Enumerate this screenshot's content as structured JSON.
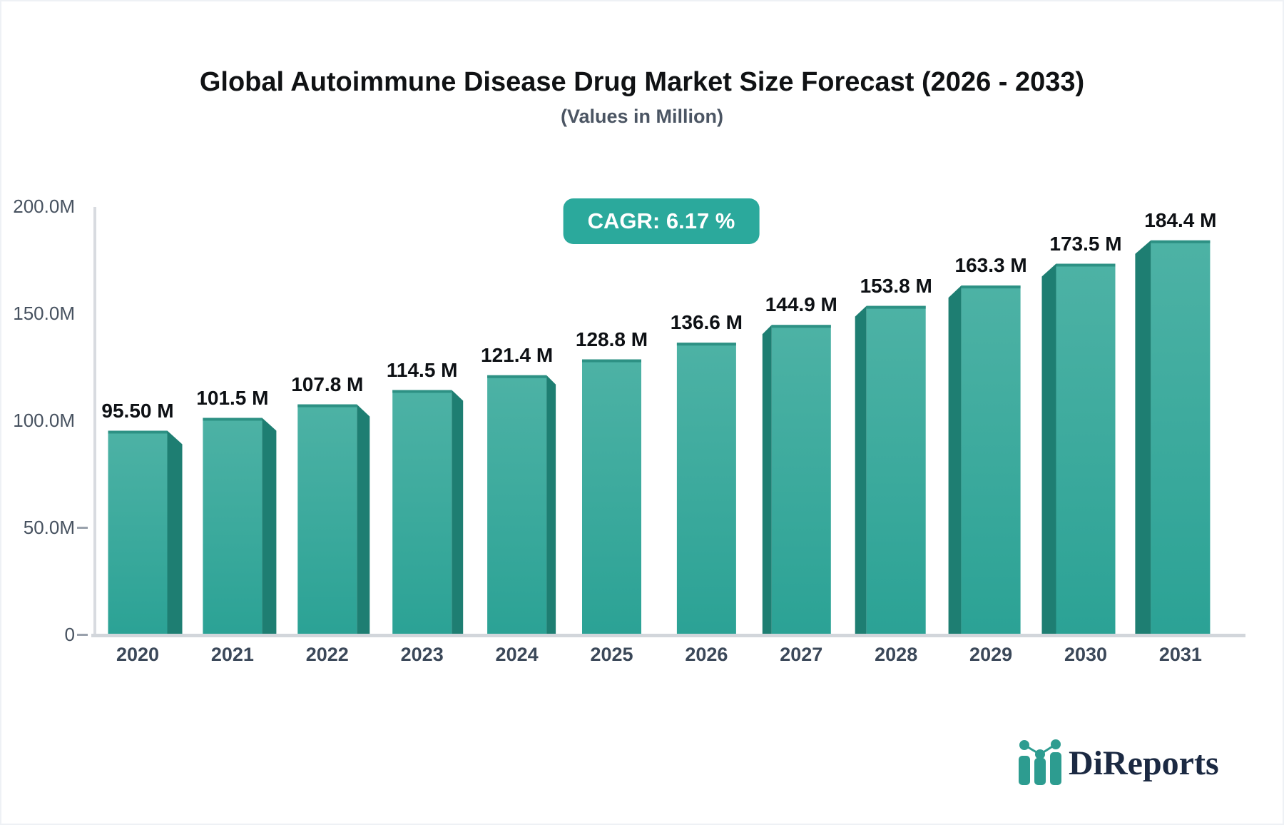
{
  "title": "Global Autoimmune Disease Drug Market Size Forecast (2026 - 2033)",
  "subtitle": "(Values in Million)",
  "badge": {
    "label": "CAGR: 6.17 %"
  },
  "logo": {
    "brand": "DiReports",
    "icon": "bar-chart-logo-icon"
  },
  "chart_data": {
    "type": "bar",
    "title": "Global Autoimmune Disease Drug Market Size Forecast (2026 - 2033)",
    "subtitle": "(Values in Million)",
    "xlabel": "",
    "ylabel": "",
    "categories": [
      "2020",
      "2021",
      "2022",
      "2023",
      "2024",
      "2025",
      "2026",
      "2027",
      "2028",
      "2029",
      "2030",
      "2031"
    ],
    "values": [
      95.5,
      101.5,
      107.8,
      114.5,
      121.4,
      128.8,
      136.6,
      144.9,
      153.8,
      163.3,
      173.5,
      184.4
    ],
    "bar_labels": [
      "95.50 M",
      "101.5 M",
      "107.8 M",
      "114.5 M",
      "121.4 M",
      "128.8 M",
      "136.6 M",
      "144.9 M",
      "153.8 M",
      "163.3 M",
      "173.5 M",
      "184.4 M"
    ],
    "unit": "Million",
    "cagr": "6.17 %",
    "ylim": [
      0,
      200
    ],
    "y_ticks": [
      {
        "label": "200.0M",
        "value": 200,
        "dash": false
      },
      {
        "label": "150.0M",
        "value": 150,
        "dash": false
      },
      {
        "label": "100.0M",
        "value": 100,
        "dash": false
      },
      {
        "label": "50.0M",
        "value": 50,
        "dash": true
      },
      {
        "label": "0",
        "value": 0,
        "dash": true
      }
    ],
    "grid": false,
    "legend": "none",
    "colors": {
      "bar_face_top": "#4db2a5",
      "bar_face_bottom": "#2ba295",
      "bar_side": "#1e7e72",
      "bar_cap": "#2d9184",
      "badge_bg": "#2ba99c",
      "axis_line": "#d8dbe0",
      "baseline": "#d2d6db",
      "tick": "#99a1ac",
      "title_text": "#101214",
      "subtitle_text": "#4b5563",
      "value_text": "#0d1014",
      "year_text": "#3b4859",
      "y_label_text": "#46515f",
      "logo_navy": "#1b2942",
      "logo_teal": "#2d9c90"
    }
  }
}
